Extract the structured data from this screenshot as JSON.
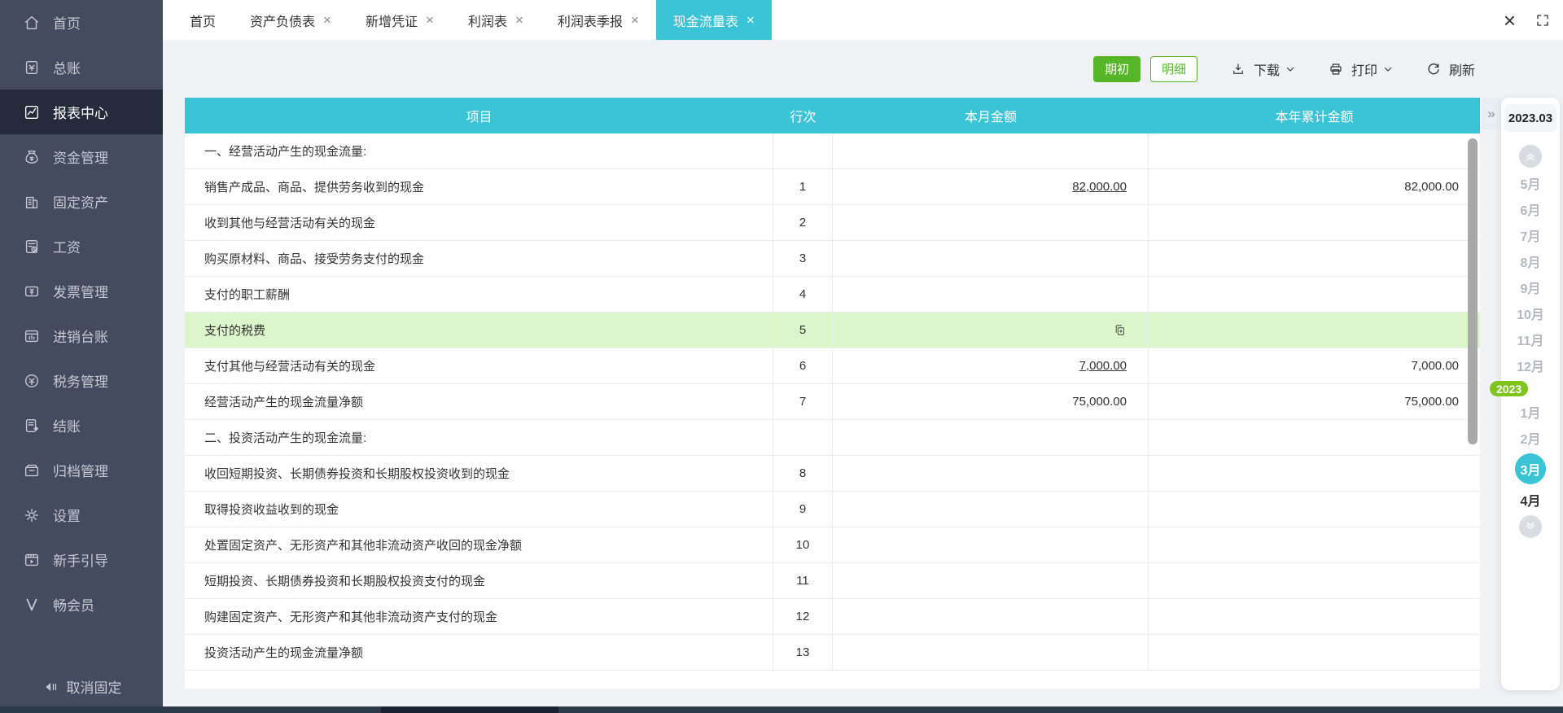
{
  "colors": {
    "accent_cyan": "#3bc3d6",
    "brand_green": "#55b727",
    "row_highlight": "#ddf5cb",
    "year_badge_green": "#7fc41c"
  },
  "sidebar": {
    "items": [
      {
        "id": "home",
        "icon": "home",
        "label": "首页",
        "active": false
      },
      {
        "id": "general-ledger",
        "icon": "ledger",
        "label": "总账",
        "active": false
      },
      {
        "id": "report-center",
        "icon": "report",
        "label": "报表中心",
        "active": true
      },
      {
        "id": "fund-management",
        "icon": "money-bag",
        "label": "资金管理",
        "active": false
      },
      {
        "id": "fixed-assets",
        "icon": "building",
        "label": "固定资产",
        "active": false
      },
      {
        "id": "payroll",
        "icon": "salary",
        "label": "工资",
        "active": false
      },
      {
        "id": "invoice-management",
        "icon": "invoice",
        "label": "发票管理",
        "active": false
      },
      {
        "id": "purchase-sale-ledger",
        "icon": "psi-ledger",
        "label": "进销台账",
        "active": false
      },
      {
        "id": "tax-management",
        "icon": "tax",
        "label": "税务管理",
        "active": false
      },
      {
        "id": "closing",
        "icon": "closing",
        "label": "结账",
        "active": false
      },
      {
        "id": "archive-management",
        "icon": "archive",
        "label": "归档管理",
        "active": false
      },
      {
        "id": "settings",
        "icon": "gear",
        "label": "设置",
        "active": false
      },
      {
        "id": "beginner-guide",
        "icon": "guide",
        "label": "新手引导",
        "active": false
      },
      {
        "id": "member",
        "icon": "vip",
        "label": "畅会员",
        "active": false
      }
    ],
    "unpin_label": "取消固定"
  },
  "tabbar": {
    "tabs": [
      {
        "label": "首页",
        "closable": false,
        "active": false
      },
      {
        "label": "资产负债表",
        "closable": true,
        "active": false
      },
      {
        "label": "新增凭证",
        "closable": true,
        "active": false
      },
      {
        "label": "利润表",
        "closable": true,
        "active": false
      },
      {
        "label": "利润表季报",
        "closable": true,
        "active": false
      },
      {
        "label": "现金流量表",
        "closable": true,
        "active": true
      }
    ]
  },
  "toolbar": {
    "opening_balance_label": "期初",
    "detail_label": "明细",
    "download_label": "下载",
    "print_label": "打印",
    "refresh_label": "刷新"
  },
  "table": {
    "columns": [
      "项目",
      "行次",
      "本月金额",
      "本年累计金额"
    ],
    "rows": [
      {
        "item": "一、经营活动产生的现金流量:",
        "line": "",
        "month": "",
        "year": "",
        "highlight": false,
        "month_link": false,
        "copy_icon": false
      },
      {
        "item": "销售产成品、商品、提供劳务收到的现金",
        "line": "1",
        "month": "82,000.00",
        "year": "82,000.00",
        "highlight": false,
        "month_link": true,
        "copy_icon": false
      },
      {
        "item": "收到其他与经营活动有关的现金",
        "line": "2",
        "month": "",
        "year": "",
        "highlight": false,
        "month_link": false,
        "copy_icon": false
      },
      {
        "item": "购买原材料、商品、接受劳务支付的现金",
        "line": "3",
        "month": "",
        "year": "",
        "highlight": false,
        "month_link": false,
        "copy_icon": false
      },
      {
        "item": "支付的职工薪酬",
        "line": "4",
        "month": "",
        "year": "",
        "highlight": false,
        "month_link": false,
        "copy_icon": false
      },
      {
        "item": "支付的税费",
        "line": "5",
        "month": "",
        "year": "",
        "highlight": true,
        "month_link": false,
        "copy_icon": true
      },
      {
        "item": "支付其他与经营活动有关的现金",
        "line": "6",
        "month": "7,000.00",
        "year": "7,000.00",
        "highlight": false,
        "month_link": true,
        "copy_icon": false
      },
      {
        "item": "经营活动产生的现金流量净额",
        "line": "7",
        "month": "75,000.00",
        "year": "75,000.00",
        "highlight": false,
        "month_link": false,
        "copy_icon": false
      },
      {
        "item": "二、投资活动产生的现金流量:",
        "line": "",
        "month": "",
        "year": "",
        "highlight": false,
        "month_link": false,
        "copy_icon": false
      },
      {
        "item": "收回短期投资、长期债券投资和长期股权投资收到的现金",
        "line": "8",
        "month": "",
        "year": "",
        "highlight": false,
        "month_link": false,
        "copy_icon": false
      },
      {
        "item": "取得投资收益收到的现金",
        "line": "9",
        "month": "",
        "year": "",
        "highlight": false,
        "month_link": false,
        "copy_icon": false
      },
      {
        "item": "处置固定资产、无形资产和其他非流动资产收回的现金净额",
        "line": "10",
        "month": "",
        "year": "",
        "highlight": false,
        "month_link": false,
        "copy_icon": false
      },
      {
        "item": "短期投资、长期债券投资和长期股权投资支付的现金",
        "line": "11",
        "month": "",
        "year": "",
        "highlight": false,
        "month_link": false,
        "copy_icon": false
      },
      {
        "item": "购建固定资产、无形资产和其他非流动资产支付的现金",
        "line": "12",
        "month": "",
        "year": "",
        "highlight": false,
        "month_link": false,
        "copy_icon": false
      },
      {
        "item": "投资活动产生的现金流量净额",
        "line": "13",
        "month": "",
        "year": "",
        "highlight": false,
        "month_link": false,
        "copy_icon": false
      }
    ]
  },
  "period_panel": {
    "current_period": "2023.03",
    "year_badge": "2023",
    "months": [
      {
        "label": "5月",
        "state": "normal"
      },
      {
        "label": "6月",
        "state": "normal"
      },
      {
        "label": "7月",
        "state": "normal"
      },
      {
        "label": "8月",
        "state": "normal"
      },
      {
        "label": "9月",
        "state": "normal"
      },
      {
        "label": "10月",
        "state": "normal"
      },
      {
        "label": "11月",
        "state": "normal"
      },
      {
        "label": "12月",
        "state": "normal"
      },
      {
        "label": "1月",
        "state": "normal"
      },
      {
        "label": "2月",
        "state": "normal"
      },
      {
        "label": "3月",
        "state": "active"
      },
      {
        "label": "4月",
        "state": "emphasis"
      }
    ]
  }
}
